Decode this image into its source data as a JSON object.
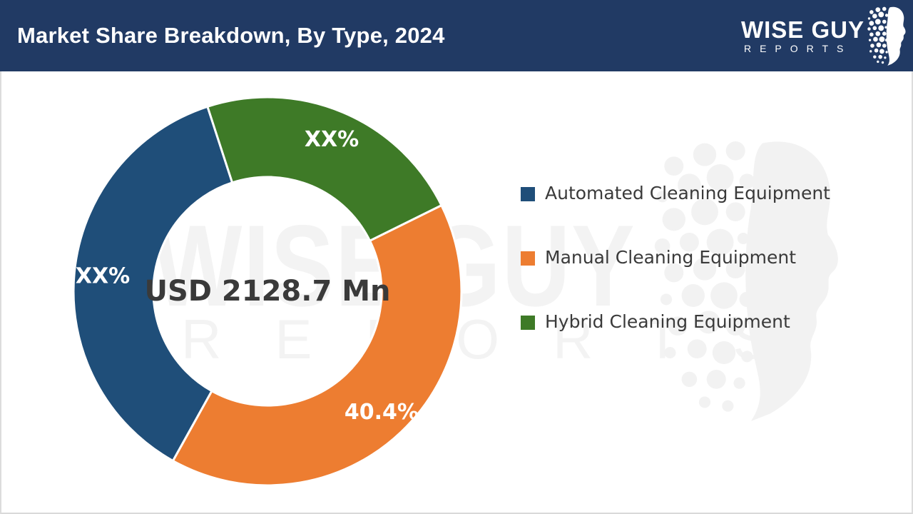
{
  "header": {
    "title": "Market Share Breakdown, By Type, 2024",
    "logo": {
      "brand": "WISE GUY",
      "sub": "REPORTS"
    }
  },
  "watermark": {
    "brand": "WISE GUY",
    "sub": "REPORTS"
  },
  "chart_data": {
    "type": "pie",
    "subtype": "donut",
    "title": "Market Share Breakdown, By Type, 2024",
    "center_label": "USD 2128.7 Mn",
    "legend_position": "right",
    "start_angle_deg": 108,
    "direction": "counterclockwise",
    "slices": [
      {
        "name": "Automated Cleaning Equipment",
        "label": "XX%",
        "value": 36.9,
        "color": "#1f4e79"
      },
      {
        "name": "Manual Cleaning Equipment",
        "label": "40.4%",
        "value": 40.4,
        "color": "#ed7d31"
      },
      {
        "name": "Hybrid Cleaning Equipment",
        "label": "XX%",
        "value": 22.7,
        "color": "#3e7a27"
      }
    ]
  },
  "colors": {
    "header_bg": "#213a64",
    "text_dark": "#3a3a3a",
    "watermark_gray": "#f3f3f3",
    "border_gray": "#d9d9d9"
  }
}
